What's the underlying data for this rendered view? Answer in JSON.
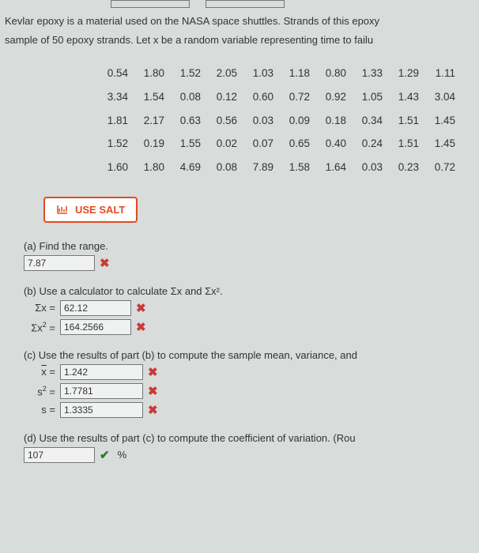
{
  "top_boxes": {
    "count": 2
  },
  "problem": {
    "line1": "Kevlar epoxy is a material used on the NASA space shuttles. Strands of this epoxy",
    "line2": "sample of 50 epoxy strands. Let x be a random variable representing time to failu"
  },
  "data": {
    "rows": [
      [
        "0.54",
        "1.80",
        "1.52",
        "2.05",
        "1.03",
        "1.18",
        "0.80",
        "1.33",
        "1.29",
        "1.11"
      ],
      [
        "3.34",
        "1.54",
        "0.08",
        "0.12",
        "0.60",
        "0.72",
        "0.92",
        "1.05",
        "1.43",
        "3.04"
      ],
      [
        "1.81",
        "2.17",
        "0.63",
        "0.56",
        "0.03",
        "0.09",
        "0.18",
        "0.34",
        "1.51",
        "1.45"
      ],
      [
        "1.52",
        "0.19",
        "1.55",
        "0.02",
        "0.07",
        "0.65",
        "0.40",
        "0.24",
        "1.51",
        "1.45"
      ],
      [
        "1.60",
        "1.80",
        "4.69",
        "0.08",
        "7.89",
        "1.58",
        "1.64",
        "0.03",
        "0.23",
        "0.72"
      ]
    ],
    "text_color": "#333333",
    "background": "#d8dcdb"
  },
  "salt_button": {
    "label": "USE SALT",
    "border_color": "#e44a1f",
    "text_color": "#e44a1f"
  },
  "parts": {
    "a": {
      "label": "(a) Find the range.",
      "value": "7.87",
      "result": "wrong"
    },
    "b": {
      "label": "(b) Use a calculator to calculate Σx and Σx².",
      "sigma_x": "62.12",
      "sigma_x2": "164.2566",
      "sigma_x_result": "wrong",
      "sigma_x2_result": "wrong"
    },
    "c": {
      "label": "(c) Use the results of part (b) to compute the sample mean, variance, and",
      "xbar": "1.242",
      "s2": "1.7781",
      "s": "1.3335",
      "xbar_result": "wrong",
      "s2_result": "wrong",
      "s_result": "wrong"
    },
    "d": {
      "label": "(d) Use the results of part (c) to compute the coefficient of variation. (Rou",
      "value": "107",
      "unit": "%",
      "result": "correct"
    }
  },
  "marks": {
    "wrong_color": "#c73a3a",
    "correct_color": "#2a7a2a"
  }
}
